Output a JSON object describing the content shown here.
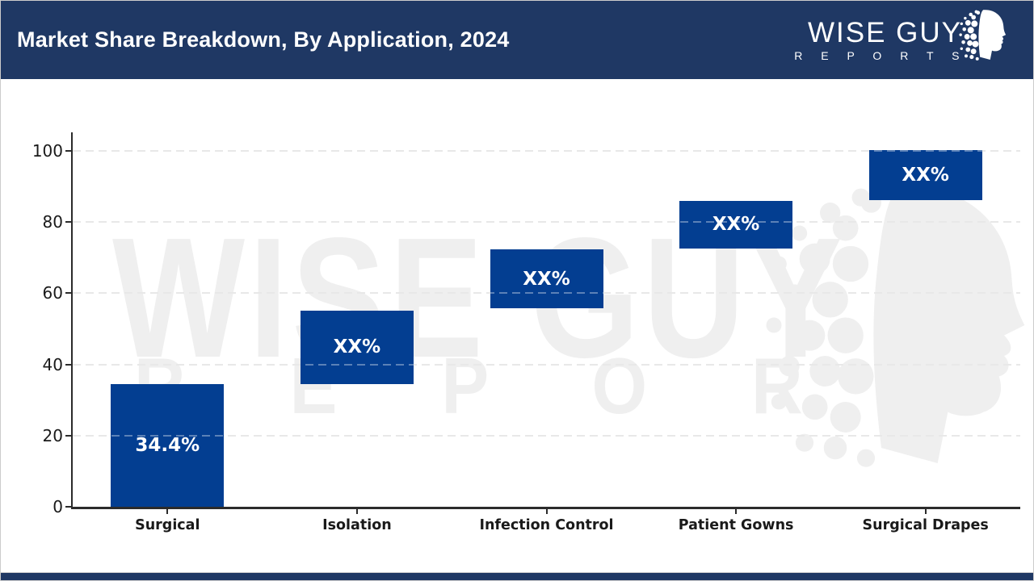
{
  "header": {
    "title": "Market Share Breakdown, By Application, 2024",
    "logo": {
      "line1": "WISE GUY",
      "line2": "R E P O R T S"
    }
  },
  "watermark": {
    "line1": "WISE GUY",
    "line2": "R E P O R T S"
  },
  "colors": {
    "header_bg": "#1f3864",
    "bar": "#033e91",
    "bar_label": "#ffffff",
    "grid": "#dcdcdc",
    "grid_over_bar": "rgba(255,255,255,0.35)",
    "axis": "#2b2b2b",
    "tick_text": "#1a1a1a",
    "watermark": "#efefef",
    "footer_bar": "#1f3864"
  },
  "chart_data": {
    "type": "bar",
    "variant": "waterfall",
    "title": "Market Share Breakdown, By Application, 2024",
    "categories": [
      "Surgical",
      "Isolation",
      "Infection Control",
      "Patient Gowns",
      "Surgical Drapes"
    ],
    "segments": [
      {
        "category": "Surgical",
        "start": 0,
        "end": 34.4,
        "label": "34.4%"
      },
      {
        "category": "Isolation",
        "start": 34.5,
        "end": 55.2,
        "label": "XX%"
      },
      {
        "category": "Infection Control",
        "start": 55.8,
        "end": 72.3,
        "label": "XX%"
      },
      {
        "category": "Patient Gowns",
        "start": 72.6,
        "end": 86.0,
        "label": "XX%"
      },
      {
        "category": "Surgical Drapes",
        "start": 86.1,
        "end": 100.3,
        "label": "XX%"
      }
    ],
    "ylim": [
      0,
      100
    ],
    "yticks": [
      0,
      20,
      40,
      60,
      80,
      100
    ],
    "xlabel": "",
    "ylabel": "",
    "grid": "dashed-horizontal",
    "legend": "none"
  }
}
